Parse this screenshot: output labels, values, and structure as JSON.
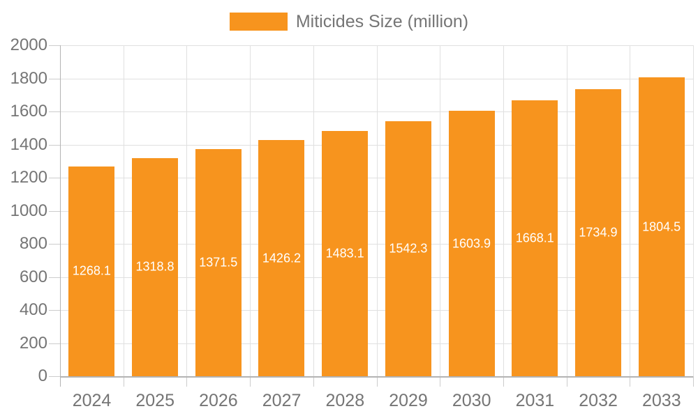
{
  "chart_data": {
    "type": "bar",
    "title": "",
    "legend": {
      "label": "Miticides Size (million)",
      "position": "top"
    },
    "categories": [
      "2024",
      "2025",
      "2026",
      "2027",
      "2028",
      "2029",
      "2030",
      "2031",
      "2032",
      "2033"
    ],
    "series": [
      {
        "name": "Miticides Size (million)",
        "values": [
          1268.1,
          1318.8,
          1371.5,
          1426.2,
          1483.1,
          1542.3,
          1603.9,
          1668.1,
          1734.9,
          1804.5
        ],
        "labels": [
          "1268.1",
          "1318.8",
          "1371.5",
          "1426.2",
          "1483.1",
          "1542.3",
          "1603.9",
          "1668.1",
          "1734.9",
          "1804.5"
        ]
      }
    ],
    "xlabel": "",
    "ylabel": "",
    "ylim": [
      0,
      2000
    ],
    "ytick_step": 200,
    "yticks": [
      0,
      200,
      400,
      600,
      800,
      1000,
      1200,
      1400,
      1600,
      1800,
      2000
    ],
    "grid": "on",
    "value_labels": "inside-center-white",
    "colors": {
      "bar": "#f7941e",
      "axis_text": "#757575",
      "grid_line": "#e0e0e0",
      "tick_line": "#cccccc",
      "axis_line": "#b3b3b3",
      "value_label": "#ffffff",
      "background": "#ffffff"
    }
  }
}
